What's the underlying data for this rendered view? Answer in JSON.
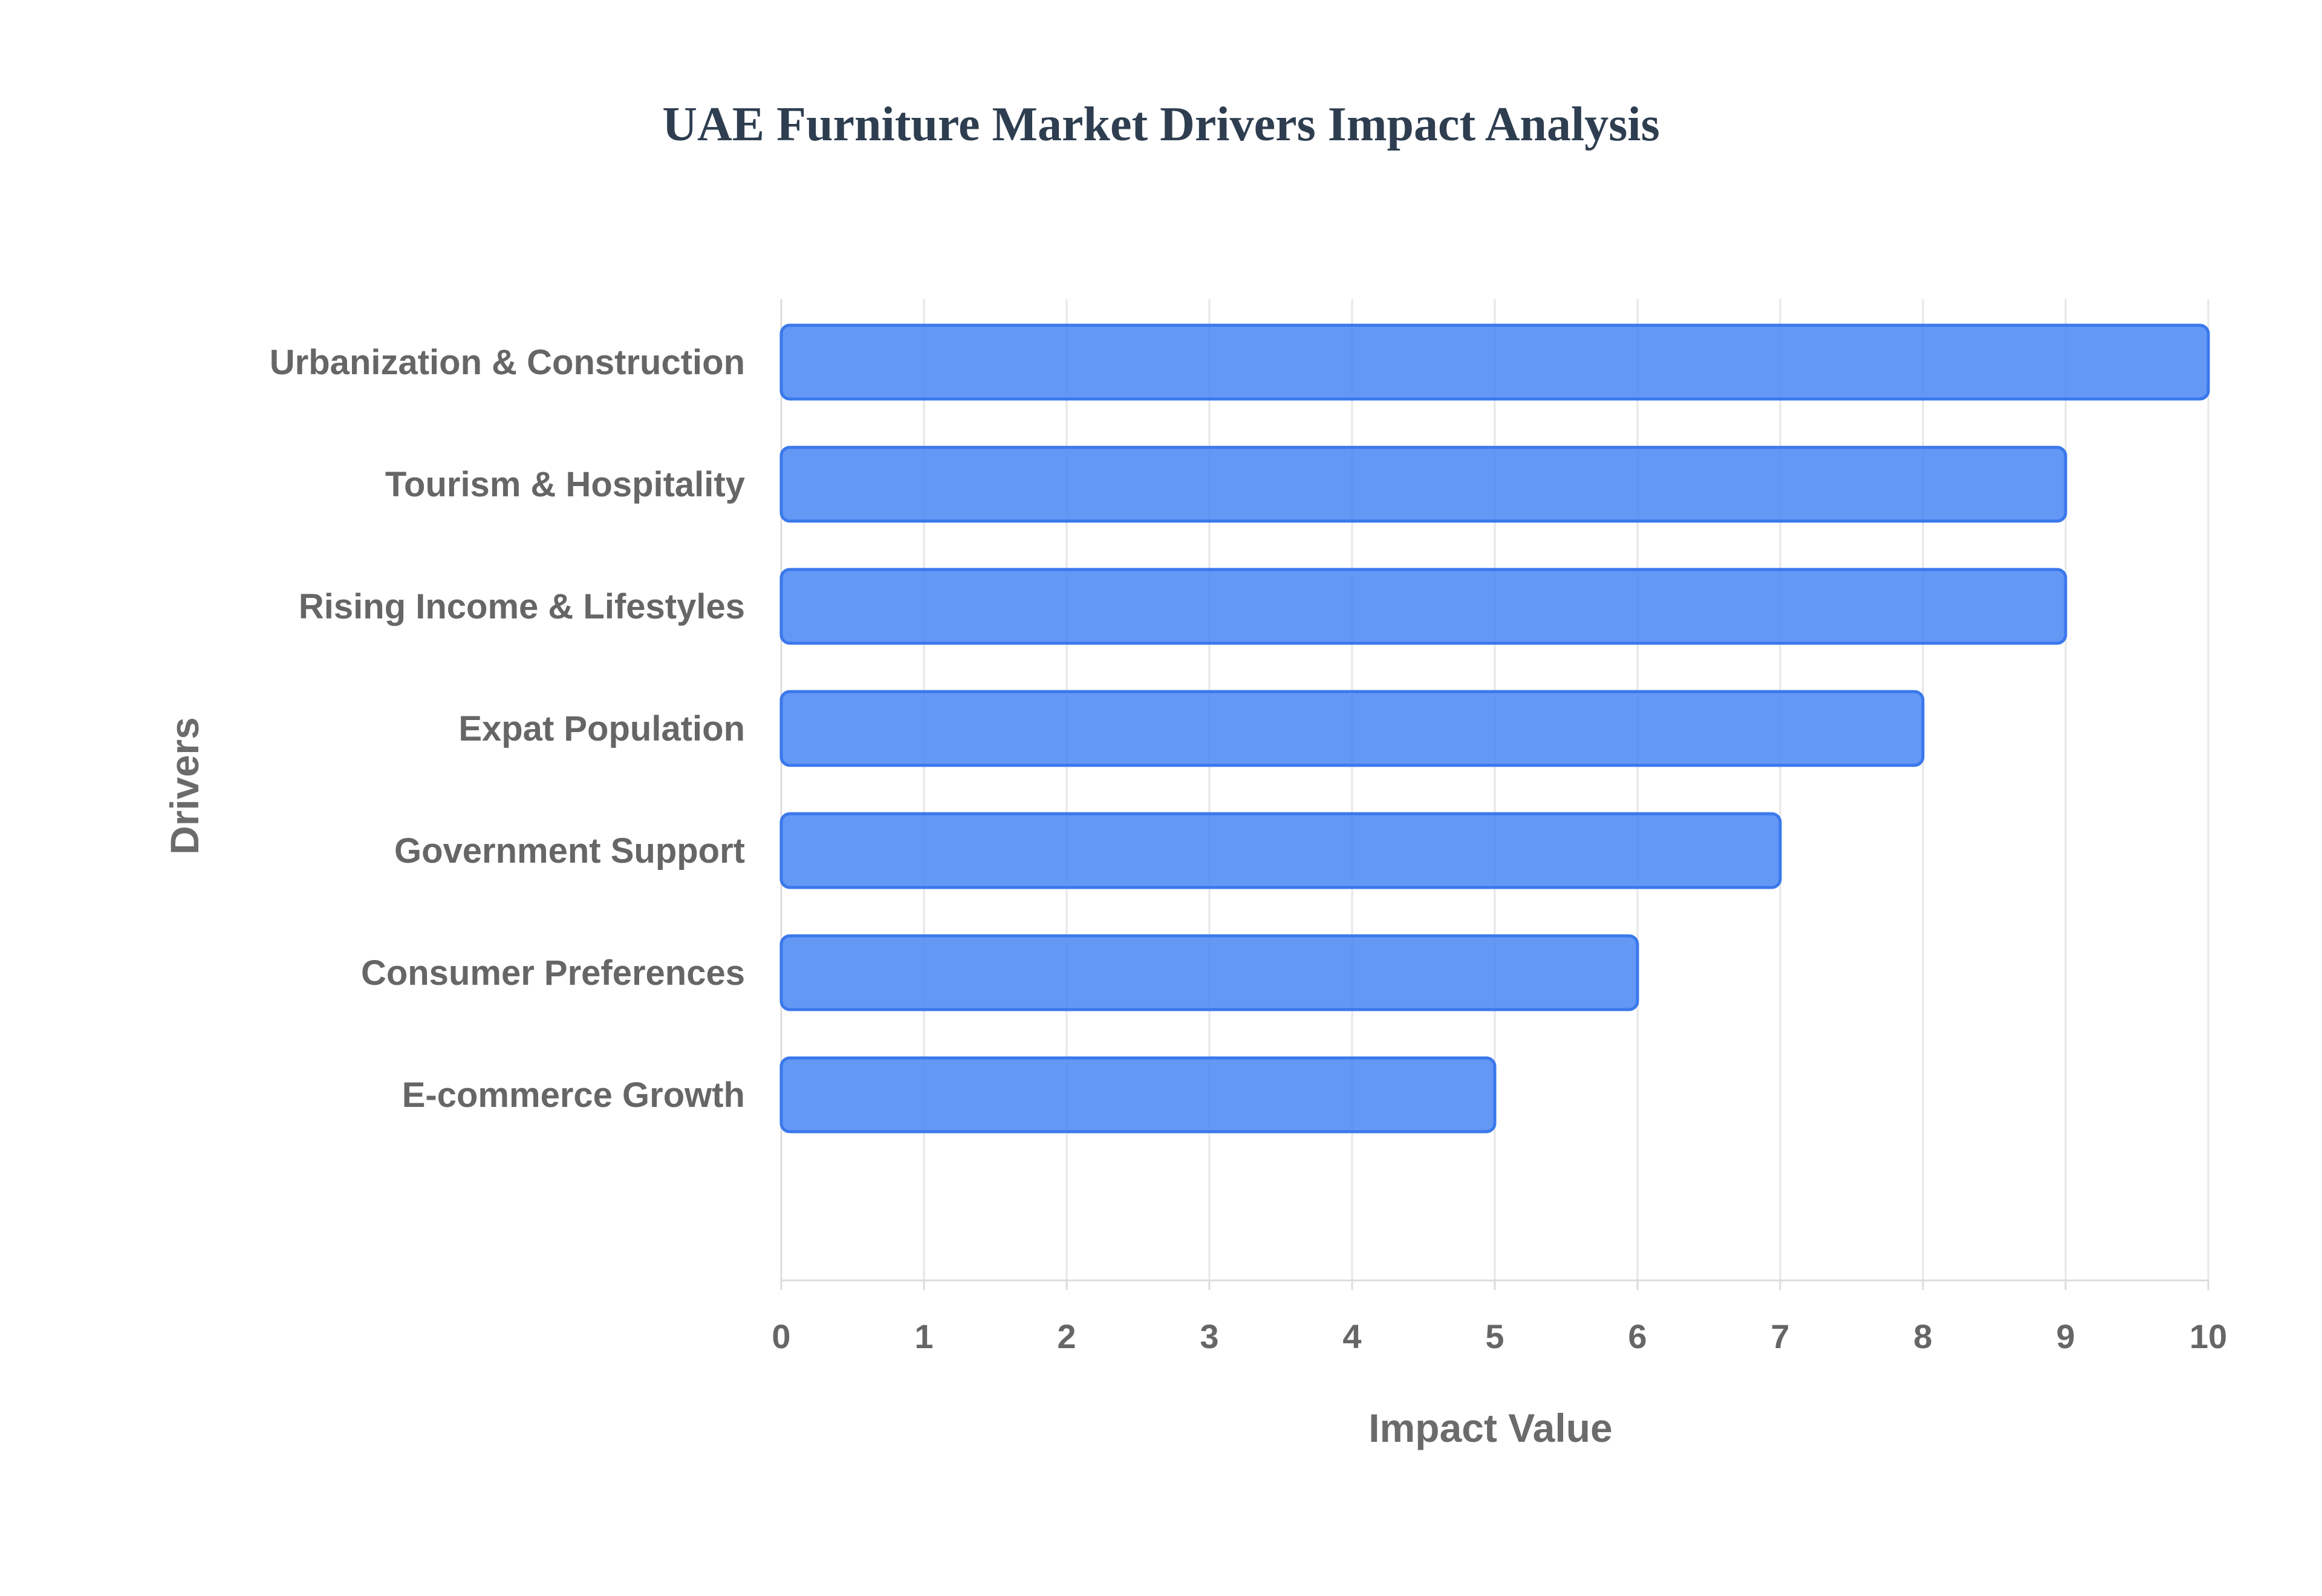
{
  "chart_data": {
    "type": "bar",
    "orientation": "horizontal",
    "title": "UAE Furniture Market Drivers Impact Analysis",
    "xlabel": "Impact Value",
    "ylabel": "Drivers",
    "xlim": [
      0,
      10
    ],
    "x_ticks": [
      "0",
      "1",
      "2",
      "3",
      "4",
      "5",
      "6",
      "7",
      "8",
      "9",
      "10"
    ],
    "categories": [
      "Urbanization & Construction",
      "Tourism & Hospitality",
      "Rising Income & Lifestyles",
      "Expat Population",
      "Government Support",
      "Consumer Preferences",
      "E-commerce Growth"
    ],
    "values": [
      10,
      9,
      9,
      8,
      7,
      6,
      5
    ],
    "grid": true,
    "legend": "none",
    "colors": {
      "bar_fill": "#4e8af4",
      "bar_stroke": "#3a78ec",
      "title": "#2e3e50",
      "labels": "#666666",
      "grid": "#e6e6e6"
    }
  }
}
